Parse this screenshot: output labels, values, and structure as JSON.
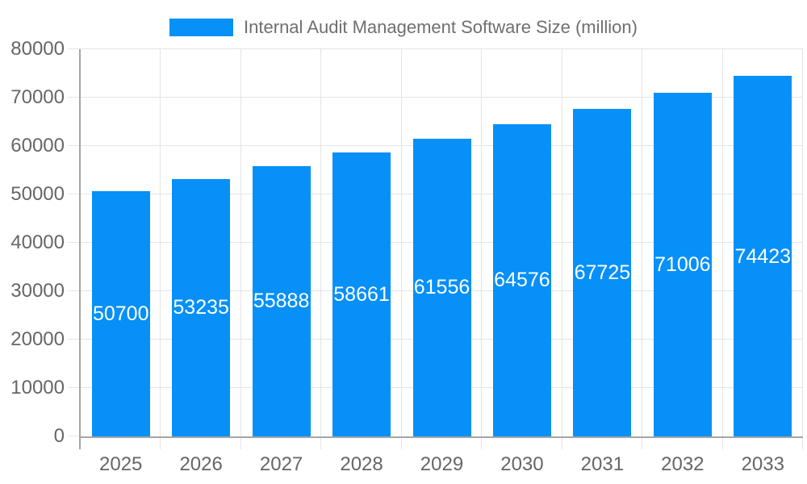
{
  "chart_data": {
    "type": "bar",
    "title": "Internal Audit Management Software Size (million)",
    "legend_position": "top",
    "categories": [
      "2025",
      "2026",
      "2027",
      "2028",
      "2029",
      "2030",
      "2031",
      "2032",
      "2033"
    ],
    "series": [
      {
        "name": "Internal Audit Management Software Size (million)",
        "values": [
          50700,
          53235,
          55888,
          58661,
          61556,
          64576,
          67725,
          71006,
          74423
        ]
      }
    ],
    "value_labels": [
      "50700",
      "53235",
      "55888",
      "58661",
      "61556",
      "64576",
      "67725",
      "71006",
      "74423"
    ],
    "xlabel": "",
    "ylabel": "",
    "ylim": [
      0,
      80000
    ],
    "y_ticks": [
      "0",
      "10000",
      "20000",
      "30000",
      "40000",
      "50000",
      "60000",
      "70000",
      "80000"
    ],
    "y_tick_values": [
      0,
      10000,
      20000,
      30000,
      40000,
      50000,
      60000,
      70000,
      80000
    ],
    "grid": true,
    "colors": {
      "bar": "#0690f8",
      "bar_value_text": "#ffffff",
      "axis_text": "#666666",
      "legend_text": "#6f6f6f",
      "gridline": "#e4e4e4",
      "axis_line": "#a5a5a5",
      "background": "#ffffff"
    }
  }
}
